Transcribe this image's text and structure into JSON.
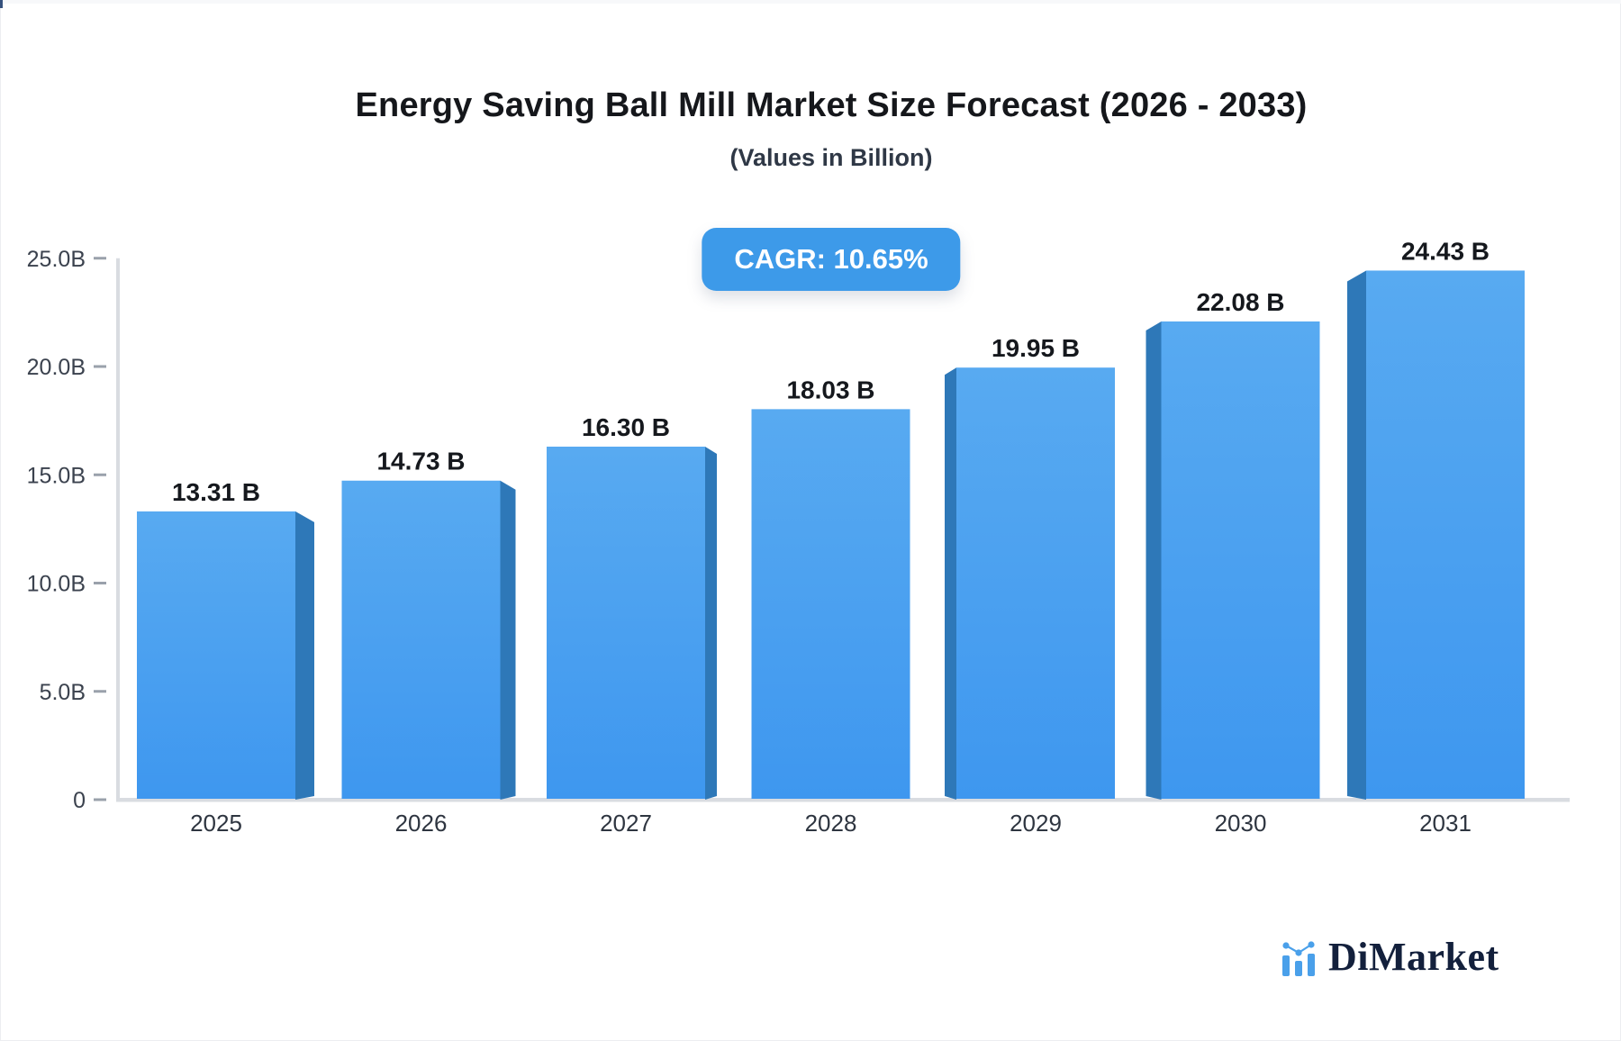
{
  "page": {
    "background": "#ffffff"
  },
  "header": {
    "title": "Energy Saving Ball Mill Market Size Forecast (2026 - 2033)",
    "subtitle": "(Values in Billion)"
  },
  "badge": {
    "label": "CAGR: 10.65%",
    "bg_color": "#3d9ae9",
    "text_color": "#ffffff"
  },
  "chart_data": {
    "type": "bar",
    "style": "3d-perspective-bars",
    "title": "Energy Saving Ball Mill Market Size Forecast (2026 - 2033)",
    "subtitle": "(Values in Billion)",
    "categories": [
      "2025",
      "2026",
      "2027",
      "2028",
      "2029",
      "2030",
      "2031"
    ],
    "values": [
      13.31,
      14.73,
      16.3,
      18.03,
      19.95,
      22.08,
      24.43
    ],
    "bar_labels": [
      "13.31 B",
      "14.73 B",
      "16.30 B",
      "18.03 B",
      "19.95 B",
      "22.08 B",
      "24.43 B"
    ],
    "xlabel": "",
    "ylabel": "",
    "ylim": [
      0,
      25
    ],
    "yticks": [
      {
        "value": 0,
        "label": "0"
      },
      {
        "value": 5,
        "label": "5.0B"
      },
      {
        "value": 10,
        "label": "10.0B"
      },
      {
        "value": 15,
        "label": "15.0B"
      },
      {
        "value": 20,
        "label": "20.0B"
      },
      {
        "value": 25,
        "label": "25.0B"
      }
    ],
    "grid": false,
    "legend": false,
    "colors": {
      "bar_face_top": "#58aaf1",
      "bar_face_bottom": "#3e97ef",
      "bar_side": "#2e78b8",
      "axis_line": "#d9dce1",
      "tick_dash": "#9aa1ab",
      "tick_label": "#3b424e",
      "category_label": "#2e3540",
      "value_label": "#15181d"
    }
  },
  "logo": {
    "text": "DiMarket",
    "icon": "bar-chart-sparkline-icon",
    "icon_color": "#4aa0ea",
    "text_color": "#13203c"
  }
}
